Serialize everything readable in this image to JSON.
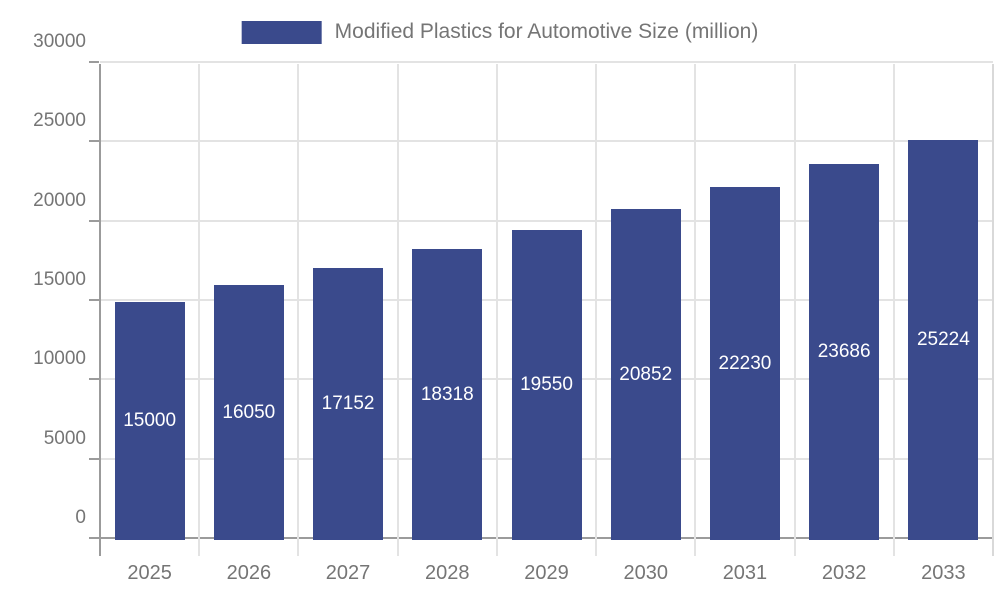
{
  "chart_data": {
    "type": "bar",
    "title": "Modified Plastics for Automotive Size (million)",
    "series_name": "Modified Plastics for Automotive Size (million)",
    "categories": [
      "2025",
      "2026",
      "2027",
      "2028",
      "2029",
      "2030",
      "2031",
      "2032",
      "2033"
    ],
    "values": [
      15000,
      16050,
      17152,
      18318,
      19550,
      20852,
      22230,
      23686,
      25224
    ],
    "value_labels": [
      "15000",
      "16050",
      "17152",
      "18318",
      "19550",
      "20852",
      "22230",
      "23686",
      "25224"
    ],
    "xlabel": "",
    "ylabel": "",
    "ylim": [
      0,
      30000
    ],
    "yticks": [
      0,
      5000,
      10000,
      15000,
      20000,
      25000,
      30000
    ],
    "ytick_labels": [
      "0",
      "5000",
      "10000",
      "15000",
      "20000",
      "25000",
      "30000"
    ],
    "grid": true,
    "legend_position": "top",
    "colors": {
      "bar": "#3A4A8C",
      "bar_label": "#FFFFFF",
      "axis_text": "#757575",
      "grid_line": "#E3E3E3",
      "axis_line": "#9B9B9B",
      "boundary_tick": "#D9D9D9",
      "background": "#FFFFFF"
    }
  }
}
